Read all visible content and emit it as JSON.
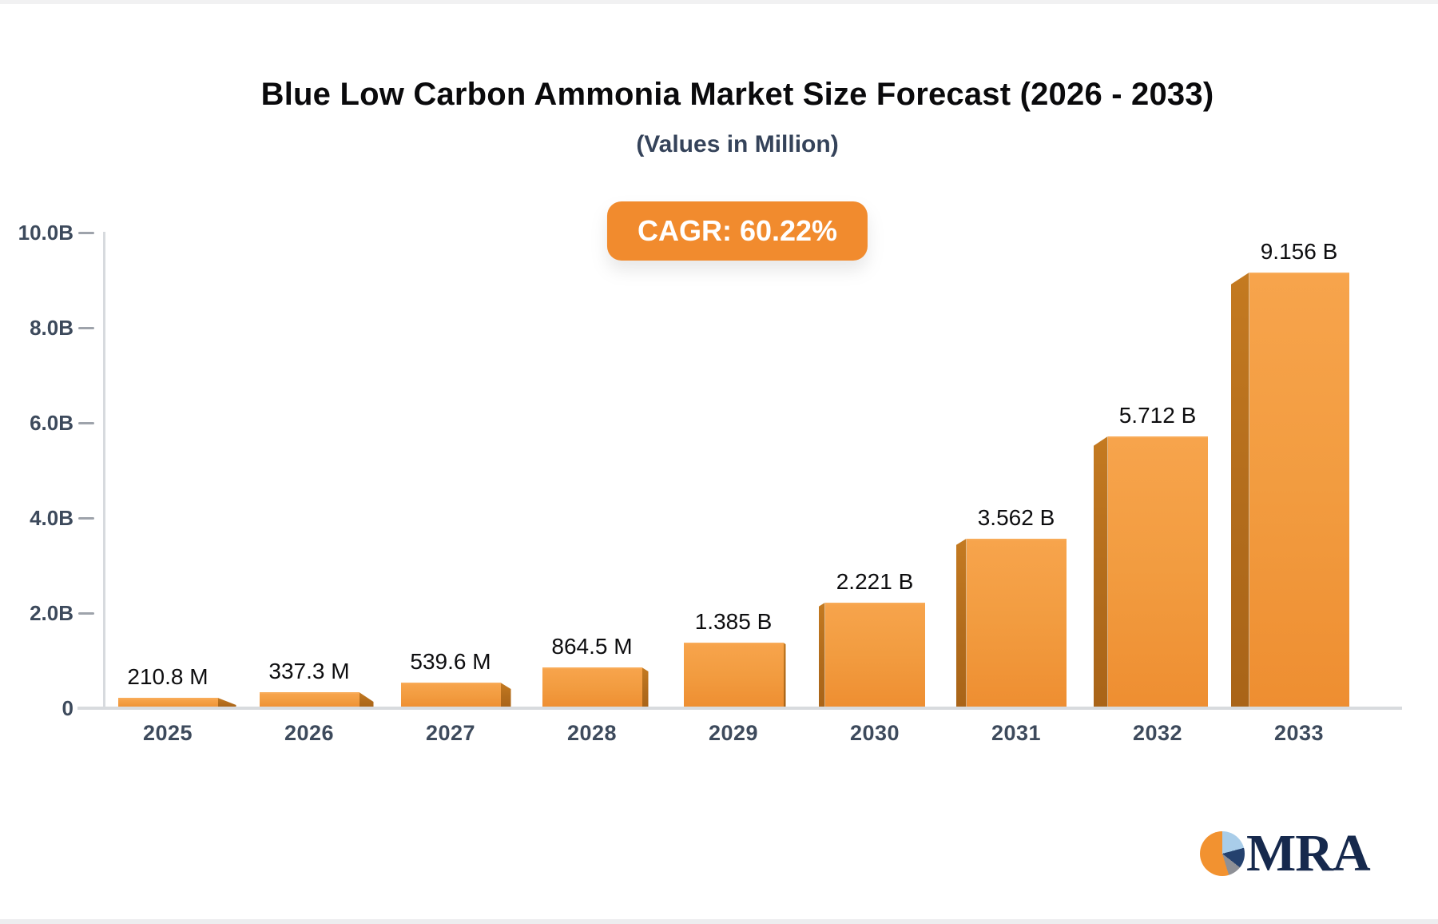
{
  "header": {
    "cagr_badge_label": "CAGR: 60.22%"
  },
  "chart_data": {
    "type": "bar",
    "title": "Blue Low Carbon Ammonia Market Size Forecast (2026 - 2033)",
    "subtitle": "(Values in Million)",
    "cagr_percent": 60.22,
    "categories": [
      "2025",
      "2026",
      "2027",
      "2028",
      "2029",
      "2030",
      "2031",
      "2032",
      "2033"
    ],
    "values_millions": [
      210.8,
      337.3,
      539.6,
      864.5,
      1385,
      2221,
      3562,
      5712,
      9156
    ],
    "bar_labels": [
      "210.8 M",
      "337.3 M",
      "539.6 M",
      "864.5 M",
      "1.385 B",
      "2.221 B",
      "3.562 B",
      "5.712 B",
      "9.156 B"
    ],
    "yticks": [
      {
        "label": "10.0B",
        "value": 10.0
      },
      {
        "label": "8.0B",
        "value": 8.0
      },
      {
        "label": "6.0B",
        "value": 6.0
      },
      {
        "label": "4.0B",
        "value": 4.0
      },
      {
        "label": "2.0B",
        "value": 2.0
      },
      {
        "label": "0",
        "value": 0.0
      }
    ],
    "ylim": [
      0,
      10
    ],
    "grid": "off",
    "legend": "none",
    "bar_style": "3d-perspective, side faces toward center"
  },
  "branding": {
    "logo_text": "MRA"
  },
  "colors": {
    "bar_face": "#F29C40",
    "bar_face_light": "#F7A44C",
    "bar_face_dark": "#EE8E31",
    "bar_side": "#B26C1C",
    "badge_background": "#F18B2E",
    "badge_text": "#FFFFFF",
    "title_text": "#0A0A0C",
    "subtitle_text": "#35435A",
    "axis_text": "#3D4A5C",
    "value_label_text": "#0D0D0F",
    "axis_line": "#D7DADE",
    "logo_navy": "#16294D",
    "logo_orange": "#F29230",
    "logo_lightblue": "#A9CDE9",
    "logo_gray": "#8E9096"
  }
}
